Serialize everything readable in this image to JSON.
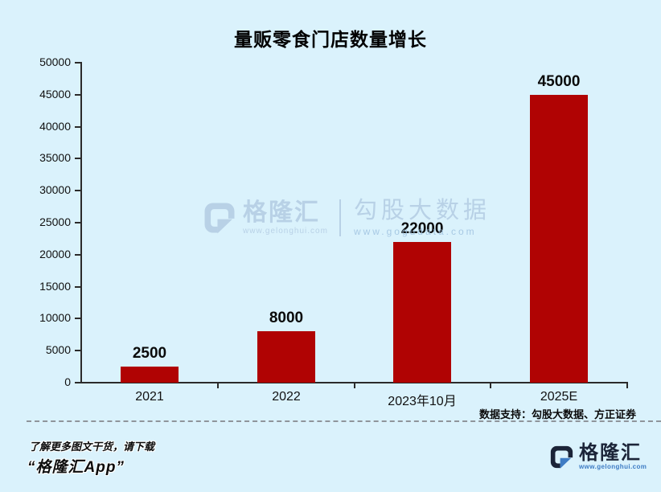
{
  "page": {
    "background": "#daf2fc"
  },
  "chart_data": {
    "type": "bar",
    "title": "量贩零食门店数量增长",
    "categories": [
      "2021",
      "2022",
      "2023年10月",
      "2025E"
    ],
    "values": [
      2500,
      8000,
      22000,
      45000
    ],
    "value_labels": [
      "2500",
      "8000",
      "22000",
      "45000"
    ],
    "xlabel": "",
    "ylabel": "",
    "ylim": [
      0,
      50000
    ],
    "ytick_step": 5000,
    "grid": false,
    "legend": "none",
    "bar_color": "#b00303",
    "axis_color": "#2b2b2b",
    "label_color": "#111111"
  },
  "source_note": "数据支持：勾股大数据、方正证券",
  "watermark": {
    "brand": "格隆汇",
    "brand_url": "www.gelonghui.com",
    "partner": "勾股大数据",
    "partner_url": "www.gogudata.com",
    "color": "#b3cce3"
  },
  "footer": {
    "promo_line1": "了解更多图文干货，请下载",
    "promo_line2": "“格隆汇App”"
  },
  "brand_logo": {
    "name": "格隆汇",
    "url": "www.gelonghui.com",
    "navy": "#1b2438",
    "blue": "#3e7cc4"
  }
}
